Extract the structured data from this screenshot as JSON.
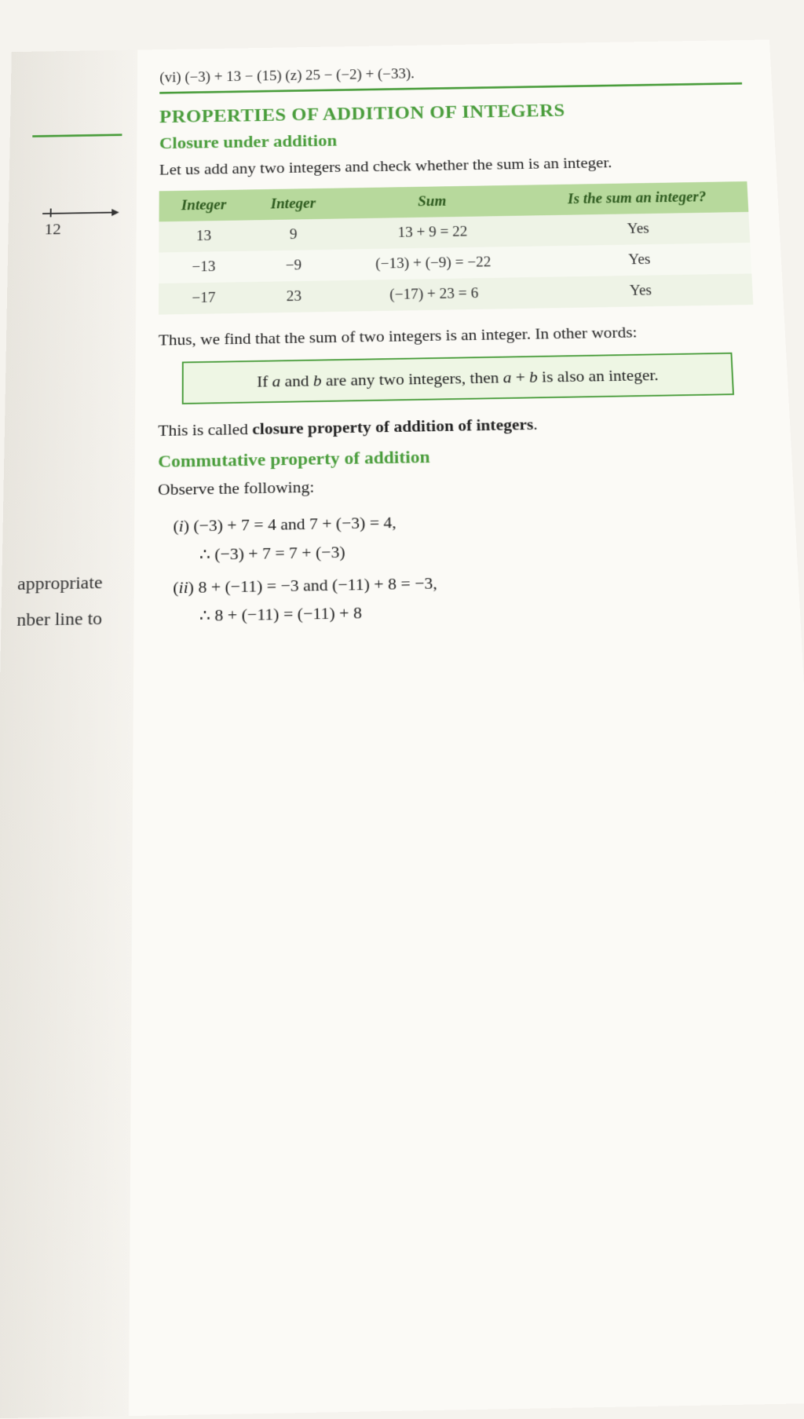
{
  "colors": {
    "accent": "#4a9d3c",
    "table_header_bg": "#b7d99c",
    "table_header_fg": "#2d5a1e",
    "row_odd_bg": "#eef3e6",
    "row_even_bg": "#f7f9f2",
    "box_border": "#4a9d3c",
    "box_bg": "#eef6e4",
    "page_bg": "#fbfaf6",
    "text": "#222"
  },
  "typography": {
    "body_fontsize_pt": 16,
    "title_fontsize_pt": 20,
    "font_family": "Georgia / serif"
  },
  "left_margin": {
    "tick_label": "12",
    "word1": "appropriate",
    "word2": "nber line to"
  },
  "top_fragment": "(vi) (−3) + 13 − (15)    (z) 25 − (−2) + (−33).",
  "section_title": "PROPERTIES OF ADDITION OF INTEGERS",
  "closure": {
    "heading": "Closure under addition",
    "lead": "Let us add any two integers and check whether the sum is an integer.",
    "table": {
      "type": "table",
      "columns": [
        "Integer",
        "Integer",
        "Sum",
        "Is the sum an integer?"
      ],
      "rows": [
        [
          "13",
          "9",
          "13 + 9 = 22",
          "Yes"
        ],
        [
          "−13",
          "−9",
          "(−13) + (−9) = −22",
          "Yes"
        ],
        [
          "−17",
          "23",
          "(−17) + 23 = 6",
          "Yes"
        ]
      ],
      "col_align": [
        "center",
        "center",
        "center",
        "center"
      ],
      "header_bg": "#b7d99c",
      "row_bg_odd": "#eef3e6",
      "row_bg_even": "#f7f9f2"
    },
    "conclusion": "Thus, we find that the sum of two integers is an integer. In other words:",
    "property_box": "If a and b are any two integers, then a + b is also an integer.",
    "name_line": "This is called closure property of addition of integers."
  },
  "commutative": {
    "heading": "Commutative property of addition",
    "lead": "Observe the following:",
    "items": [
      {
        "label": "(i)",
        "line1": "(−3) + 7 = 4 and 7 + (−3) = 4,",
        "line2": "∴ (−3) + 7 = 7 + (−3)"
      },
      {
        "label": "(ii)",
        "line1": "8 + (−11) = −3 and (−11) + 8 = −3,",
        "line2": "∴ 8 + (−11) = (−11) + 8"
      }
    ]
  }
}
